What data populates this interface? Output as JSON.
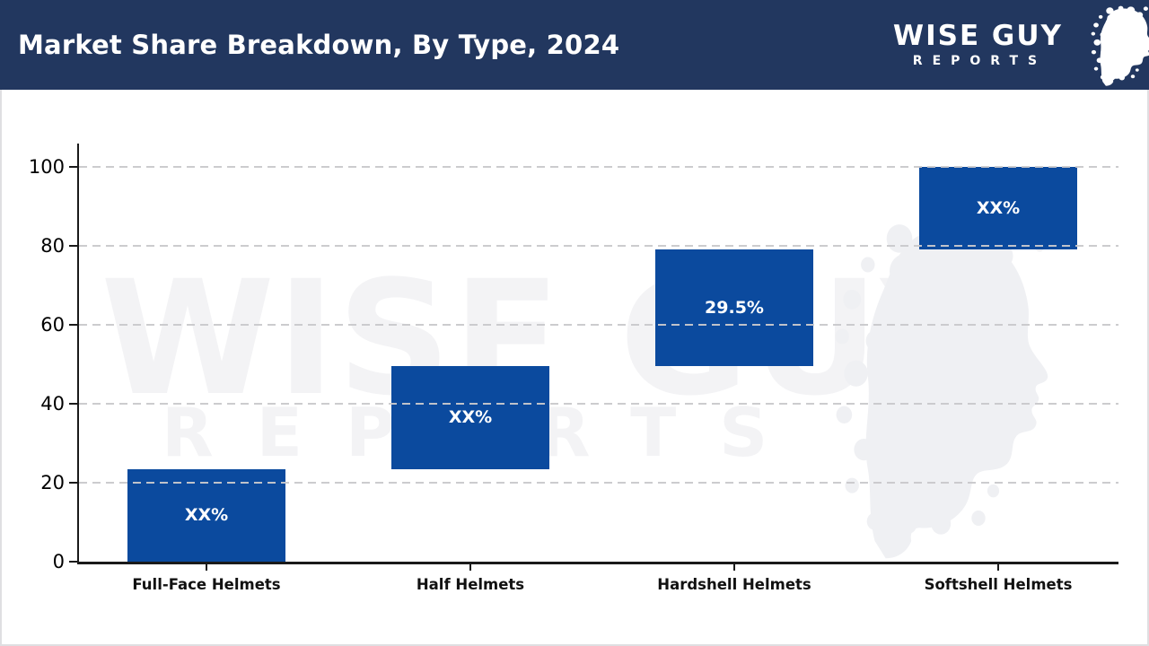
{
  "header": {
    "title": "Market Share Breakdown, By Type, 2024",
    "logo": {
      "line1": "WISE GUY",
      "line2": "REPORTS"
    }
  },
  "watermark": {
    "line1": "WISE GUY",
    "line2": "REPORTS"
  },
  "chart_data": {
    "type": "bar",
    "variant": "waterfall-floating-bars",
    "title": "Market Share Breakdown, By Type, 2024",
    "categories": [
      "Full-Face Helmets",
      "Half Helmets",
      "Hardshell Helmets",
      "Softshell Helmets"
    ],
    "bars": [
      {
        "category": "Full-Face Helmets",
        "start": 0,
        "end": 23.5,
        "value": 23.5,
        "label": "XX%"
      },
      {
        "category": "Half Helmets",
        "start": 23.5,
        "end": 49.5,
        "value": 26,
        "label": "XX%"
      },
      {
        "category": "Hardshell Helmets",
        "start": 49.5,
        "end": 79,
        "value": 29.5,
        "label": "29.5%"
      },
      {
        "category": "Softshell Helmets",
        "start": 79,
        "end": 100,
        "value": 21,
        "label": "XX%"
      }
    ],
    "xlabel": "",
    "ylabel": "",
    "ylim": [
      0,
      100
    ],
    "yticks": [
      0,
      20,
      40,
      60,
      80,
      100
    ],
    "grid": "horizontal dashed, drawn above bars",
    "legend": "none",
    "bar_color": "#0b4a9e",
    "bar_label_color": "#ffffff"
  },
  "colors": {
    "header_bg": "#22375f",
    "bar": "#0b4a9e",
    "grid": "#cdcdd0",
    "axis": "#1a1a1a",
    "watermark": "#f3f3f5",
    "frame_border": "#dfdfe2"
  }
}
